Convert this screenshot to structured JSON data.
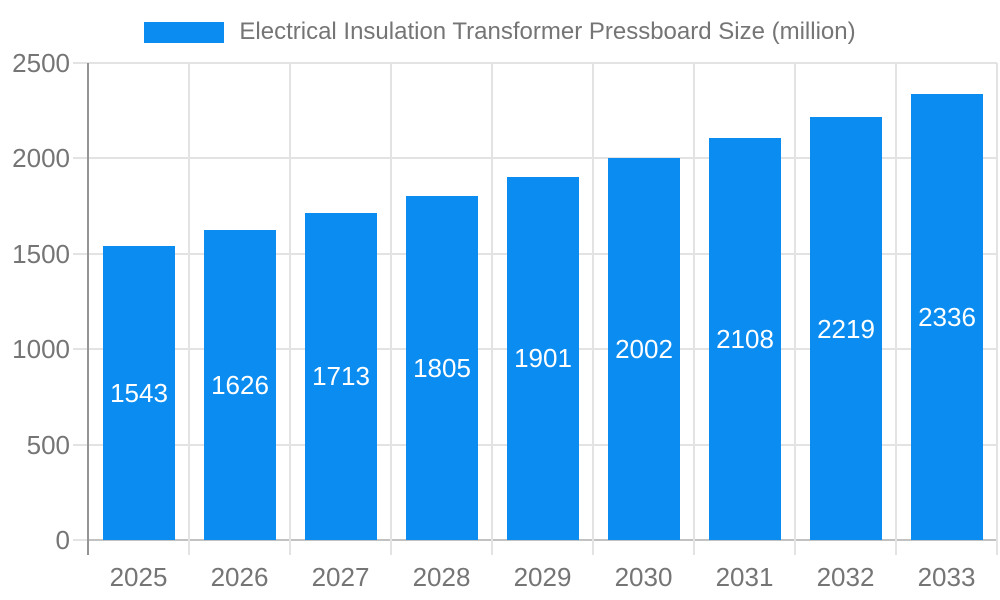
{
  "chart_data": {
    "type": "bar",
    "title": "Electrical Insulation Transformer Pressboard Size (million)",
    "legend": [
      "Electrical Insulation Transformer Pressboard Size (million)"
    ],
    "legend_position": "top",
    "categories": [
      "2025",
      "2026",
      "2027",
      "2028",
      "2029",
      "2030",
      "2031",
      "2032",
      "2033"
    ],
    "values": [
      1543,
      1626,
      1713,
      1805,
      1901,
      2002,
      2108,
      2219,
      2336
    ],
    "value_labels_visible": true,
    "value_label_position": "center-of-bar",
    "xlabel": "",
    "ylabel": "",
    "ylim": [
      0,
      2500
    ],
    "yticks": [
      0,
      500,
      1000,
      1500,
      2000,
      2500
    ],
    "grid": true,
    "colors": {
      "bar": "#0a8cf0",
      "value_label": "#ffffff",
      "axis_text": "#757575",
      "gridline": "#e3e3e3",
      "zero_line": "#c2c2c2",
      "axis_line": "#949494",
      "background": "#ffffff"
    }
  }
}
